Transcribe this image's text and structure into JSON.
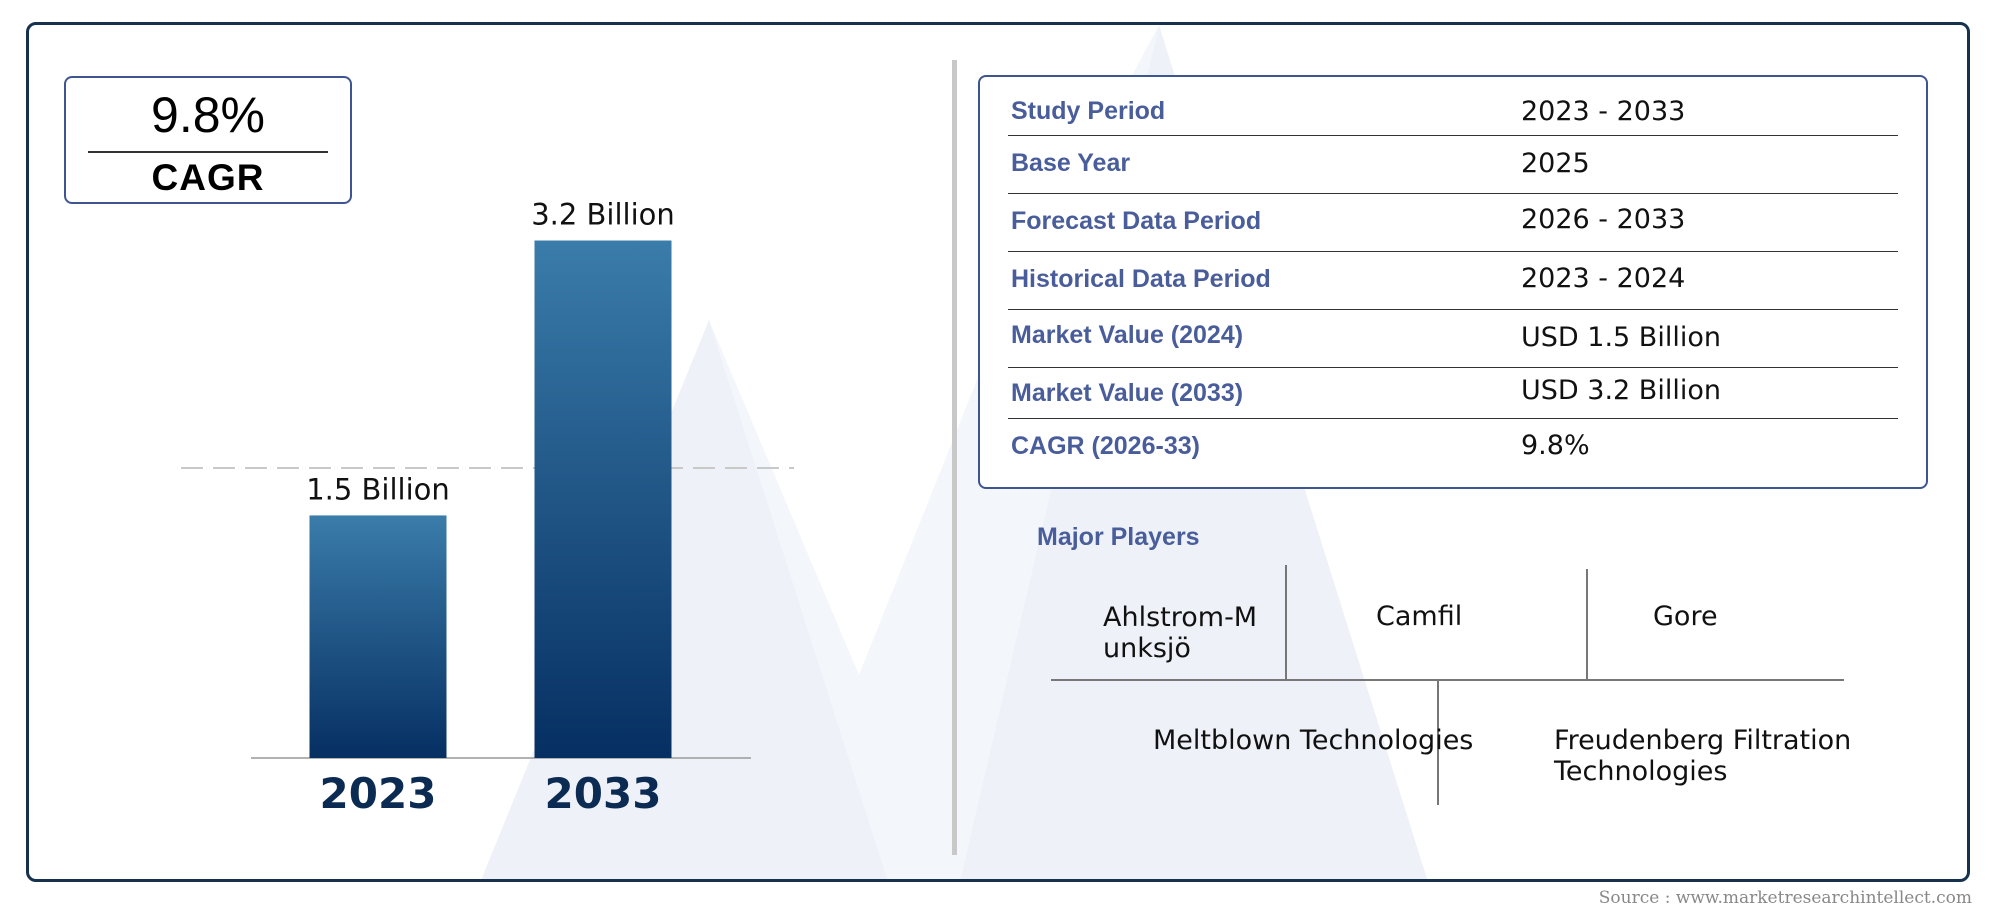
{
  "cagr": {
    "value": "9.8%",
    "label": "CAGR"
  },
  "chart_data": {
    "type": "bar",
    "categories": [
      "2023",
      "2033"
    ],
    "values": [
      1.5,
      3.2
    ],
    "value_labels": [
      "1.5 Billion",
      "3.2 Billion"
    ],
    "ylim": [
      0,
      3.5
    ],
    "colors": {
      "bar_top": "#3a7caa",
      "bar_bottom": "#062f62"
    }
  },
  "info_table": [
    {
      "key": "Study Period",
      "value": "2023 - 2033"
    },
    {
      "key": "Base Year",
      "value": "2025"
    },
    {
      "key": "Forecast Data Period",
      "value": "2026 - 2033"
    },
    {
      "key": "Historical Data Period",
      "value": "2023 - 2024"
    },
    {
      "key": "Market Value (2024)",
      "value": "USD 1.5 Billion"
    },
    {
      "key": "Market Value (2033)",
      "value": "USD 3.2 Billion"
    },
    {
      "key": "CAGR (2026-33)",
      "value": "9.8%"
    }
  ],
  "players": {
    "title": "Major Players",
    "names": [
      "Ahlstrom-Munksjö",
      "Camfil",
      "Gore",
      "Meltblown Technologies",
      "Freudenberg Filtration Technologies"
    ]
  },
  "source": "Source : www.marketresearchintellect.com",
  "colors": {
    "frame": "#16324f",
    "accent": "#4a5d9b",
    "box_border": "#3f5590"
  }
}
